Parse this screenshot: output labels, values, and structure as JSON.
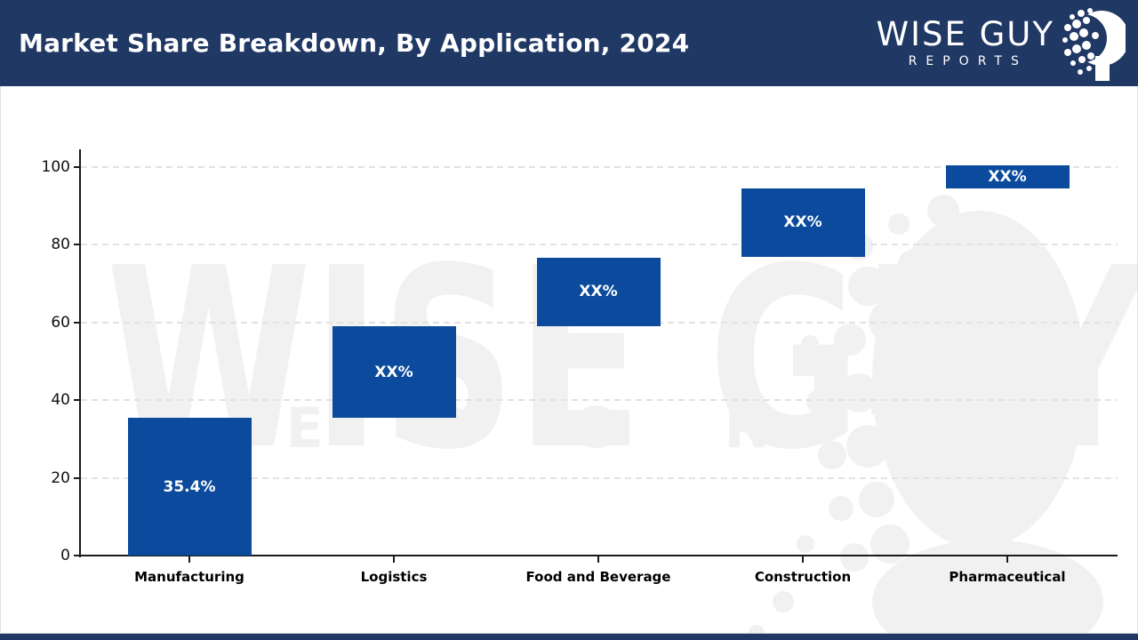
{
  "header": {
    "title": "Market Share Breakdown, By Application, 2024",
    "bg_color": "#203864",
    "logo": {
      "line1": "WISE GUY",
      "line2": "REPORTS"
    }
  },
  "watermark": {
    "line1": "WISE GUY",
    "line2": "R E P O R T S"
  },
  "chart_data": {
    "type": "bar",
    "subtype": "waterfall",
    "title": "Market Share Breakdown, By Application, 2024",
    "categories": [
      "Manufacturing",
      "Logistics",
      "Food and Beverage",
      "Construction",
      "Pharmaceutical"
    ],
    "segments": [
      {
        "category": "Manufacturing",
        "start": 0,
        "end": 35.4,
        "label": "35.4%"
      },
      {
        "category": "Logistics",
        "start": 35.4,
        "end": 59.0,
        "label": "XX%"
      },
      {
        "category": "Food and Beverage",
        "start": 59.0,
        "end": 76.7,
        "label": "XX%"
      },
      {
        "category": "Construction",
        "start": 76.9,
        "end": 94.6,
        "label": "XX%"
      },
      {
        "category": "Pharmaceutical",
        "start": 94.6,
        "end": 100.4,
        "label": "XX%"
      }
    ],
    "yticks": [
      0,
      20,
      40,
      60,
      80,
      100
    ],
    "ylim": [
      0,
      105
    ],
    "xlabel": "",
    "ylabel": "",
    "bar_color": "#0b4a9c",
    "grid": "dashed-horizontal",
    "gridline_color": "#e2e2e2",
    "legend": "none"
  }
}
